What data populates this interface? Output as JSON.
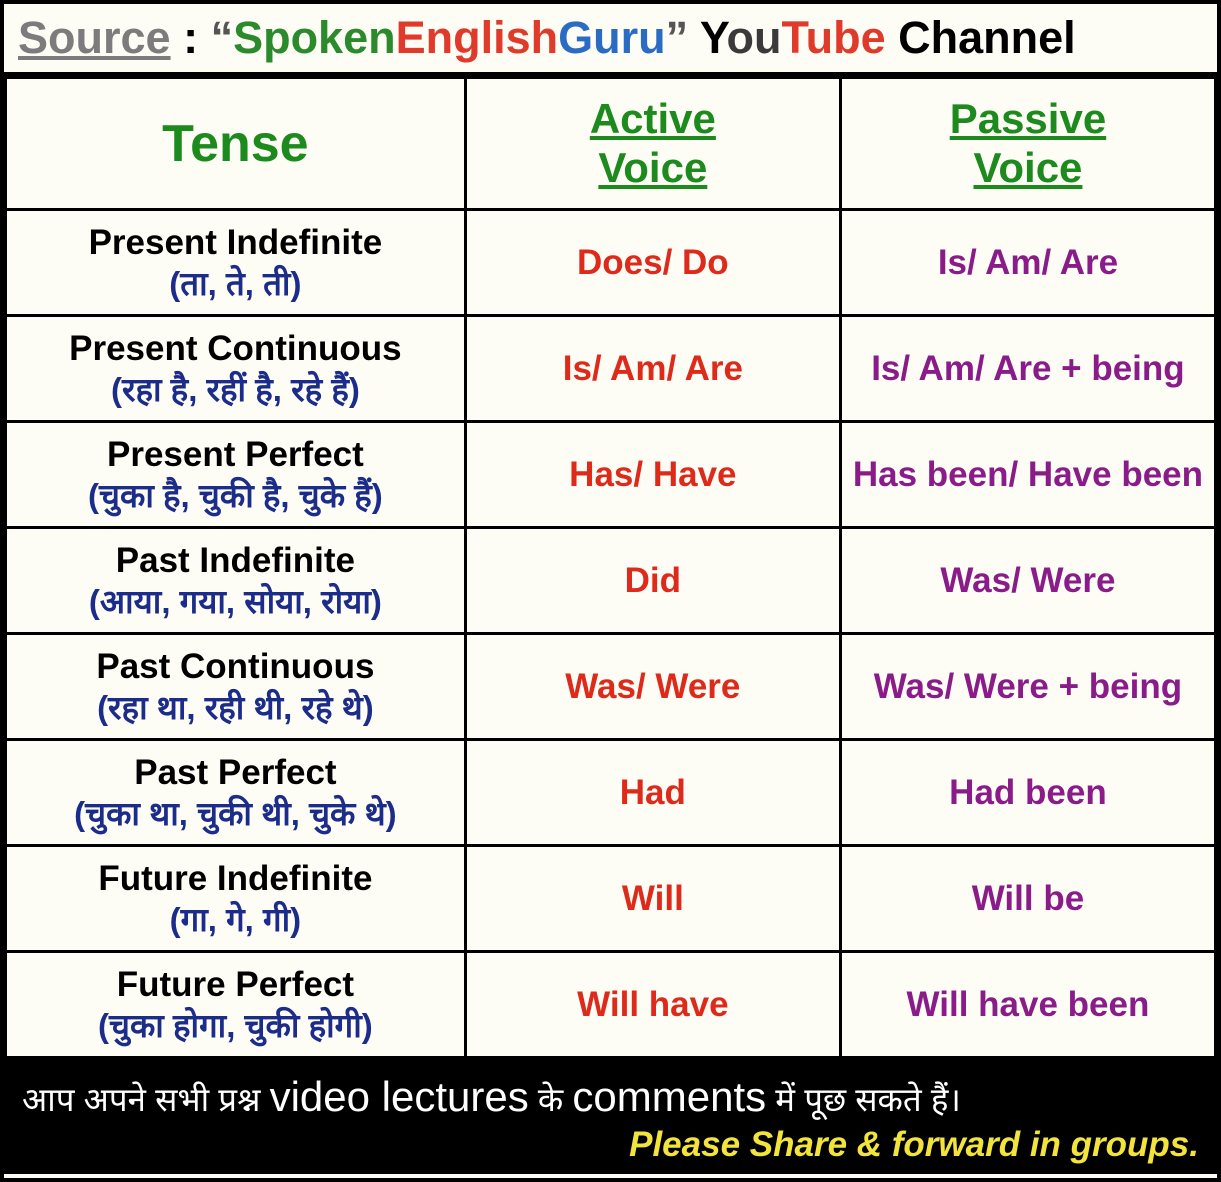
{
  "header": {
    "source_label": "Source",
    "colon": " : ",
    "quote_open": "“",
    "spoken": "Spoken",
    "english": "English",
    "guru": "Guru",
    "quote_close": "”",
    "yt_y": "Y",
    "yt_ou": "ou",
    "yt_tube": "Tube",
    "channel": " Channel"
  },
  "table": {
    "headers": {
      "tense": "Tense",
      "active_line1": "Active",
      "active_line2": "Voice",
      "passive_line1": "Passive",
      "passive_line2": " Voice"
    },
    "rows": [
      {
        "tense_en": "Present Indefinite",
        "tense_hi": "(ता, ते, ती)",
        "active": "Does/ Do",
        "passive": "Is/ Am/ Are"
      },
      {
        "tense_en": "Present Continuous",
        "tense_hi": "(रहा है, रहीं है, रहे हैं)",
        "active": "Is/ Am/ Are",
        "passive": "Is/ Am/ Are + being"
      },
      {
        "tense_en": "Present Perfect",
        "tense_hi": "(चुका है, चुकी है, चुके हैं)",
        "active": "Has/ Have",
        "passive": "Has been/ Have been"
      },
      {
        "tense_en": "Past Indefinite",
        "tense_hi": "(आया, गया, सोया, रोया)",
        "active": "Did",
        "passive": "Was/ Were"
      },
      {
        "tense_en": "Past Continuous",
        "tense_hi": "(रहा था, रही थी, रहे थे)",
        "active": "Was/ Were",
        "passive": "Was/ Were + being"
      },
      {
        "tense_en": "Past Perfect",
        "tense_hi": "(चुका था, चुकी थी, चुके थे)",
        "active": "Had",
        "passive": "Had been"
      },
      {
        "tense_en": "Future Indefinite",
        "tense_hi": "(गा, गे, गी)",
        "active": "Will",
        "passive": "Will be"
      },
      {
        "tense_en": "Future Perfect",
        "tense_hi": "(चुका होगा, चुकी होगी)",
        "active": "Will have",
        "passive": "Will have been"
      }
    ]
  },
  "footer": {
    "line1_pre": "आप अपने सभी प्रश्न ",
    "line1_mid1": "video lectures",
    "line1_mid2": " के ",
    "line1_mid3": "comments",
    "line1_post": " में पूछ सकते हैं।",
    "line2": "Please Share & forward in groups."
  },
  "colors": {
    "background": "#fdfcf5",
    "border": "#000000",
    "source_gray": "#7c7c7c",
    "spoken_green": "#2b8a2b",
    "english_red": "#e03b2a",
    "guru_blue": "#2a6bc4",
    "header_green": "#1c8a1c",
    "hindi_blue": "#1c2c8a",
    "active_red": "#dd2a1a",
    "passive_purple": "#8a1c8a",
    "footer_yellow": "#f2e43a"
  }
}
